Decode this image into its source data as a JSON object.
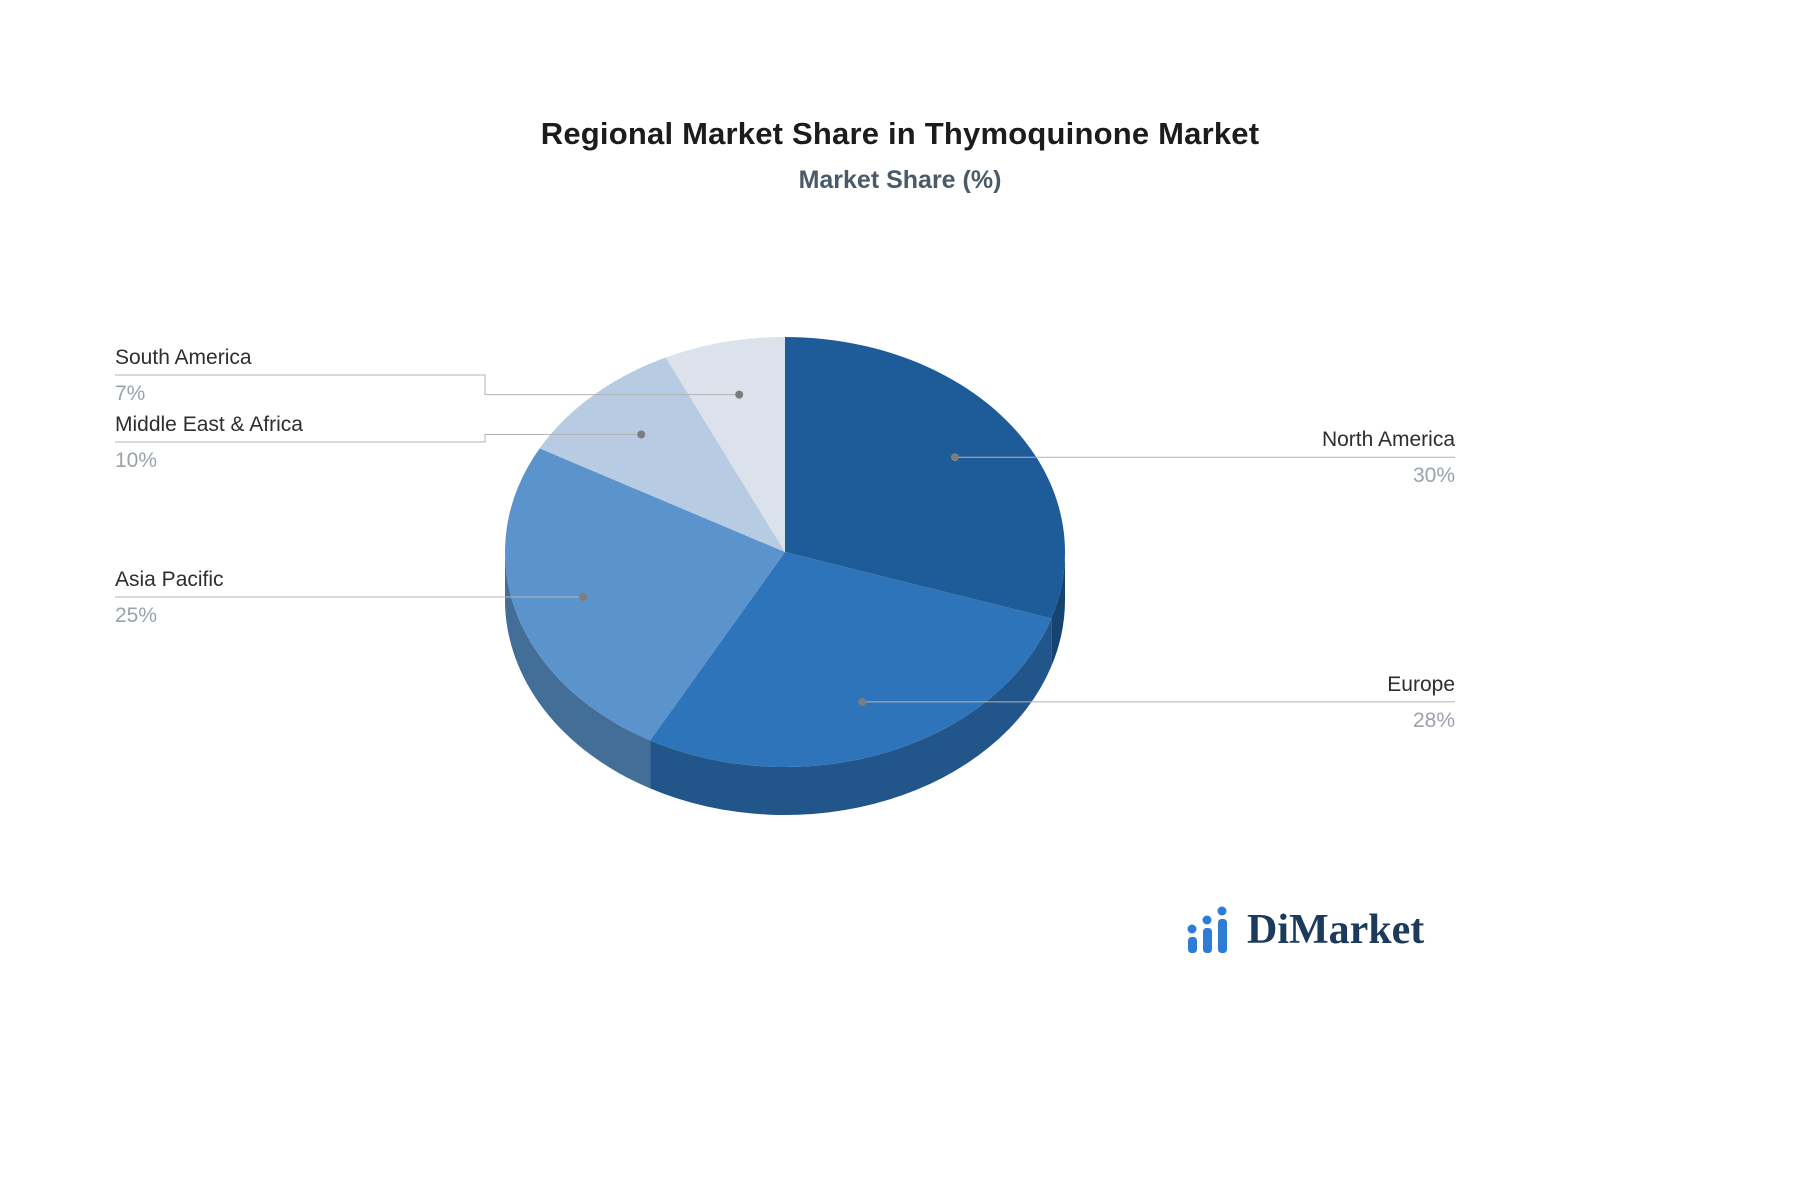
{
  "title": "Regional Market Share in Thymoquinone Market",
  "subtitle": "Market Share (%)",
  "brand": {
    "name": "DiMarket",
    "icon_color": "#2e7cd6",
    "text_color": "#1b3a5c"
  },
  "chart_data": {
    "type": "pie",
    "title": "Regional Market Share in Thymoquinone Market",
    "subtitle": "Market Share (%)",
    "unit": "%",
    "categories": [
      "North America",
      "Europe",
      "Asia Pacific",
      "Middle East & Africa",
      "South America"
    ],
    "values": [
      30,
      28,
      25,
      10,
      7
    ],
    "labels": [
      "30%",
      "28%",
      "25%",
      "10%",
      "7%"
    ],
    "colors": [
      "#1e5c99",
      "#2e74ba",
      "#5b94cd",
      "#b7cbe2",
      "#dbe2ec"
    ],
    "start_angle_deg": 0,
    "direction": "clockwise",
    "effect": "3d",
    "legend_position": "none",
    "grid": false
  }
}
